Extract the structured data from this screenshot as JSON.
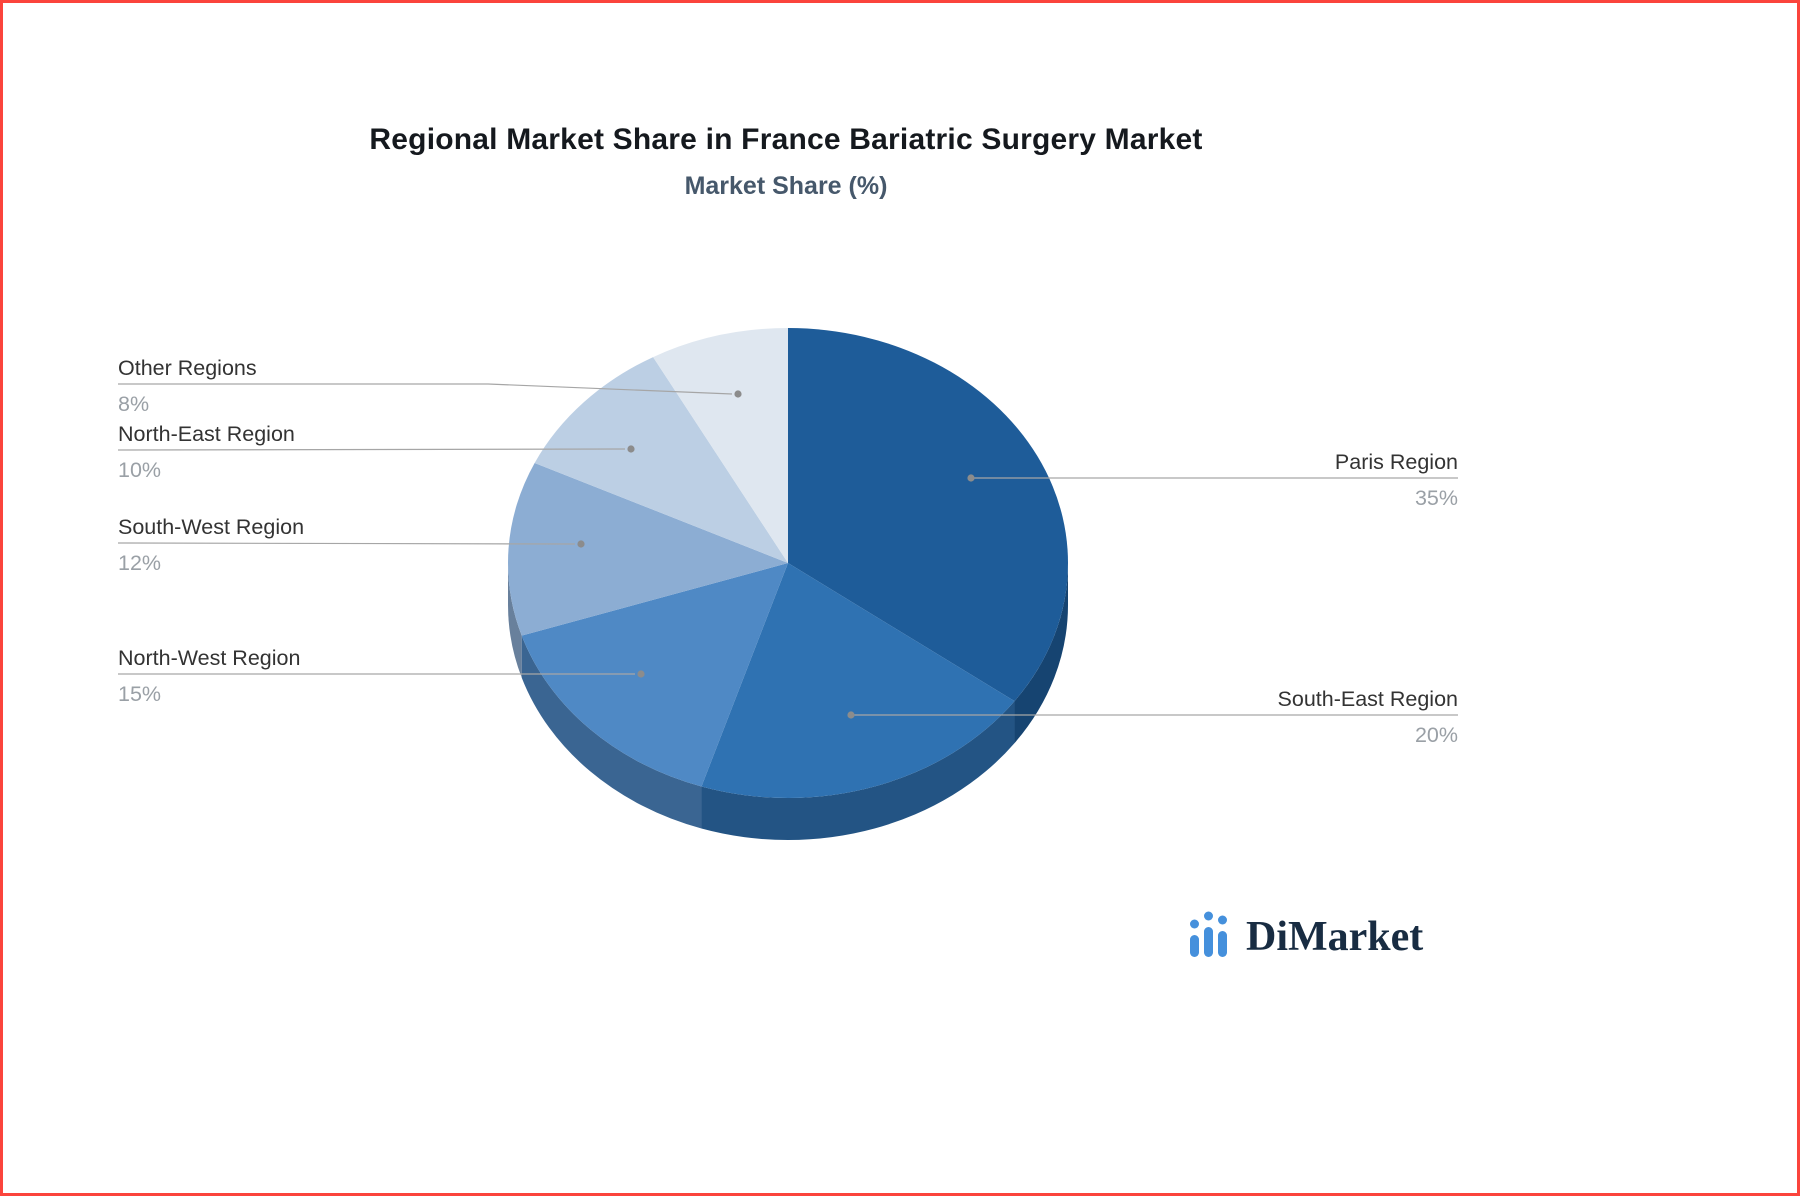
{
  "title": "Regional Market Share in France Bariatric Surgery Market",
  "subtitle": "Market Share (%)",
  "brand": {
    "name": "DiMarket",
    "logo_icon": "bar-chart-icon",
    "logo_color": "#4590dc",
    "text_color": "#182c42"
  },
  "chart_data": {
    "type": "pie",
    "title": "Regional Market Share in France Bariatric Surgery Market",
    "subtitle": "Market Share (%)",
    "unit": "%",
    "effect": "3d",
    "start_angle_deg": 0,
    "direction": "clockwise",
    "legend_position": "callout-labels",
    "slices": [
      {
        "label": "Paris Region",
        "value": 35,
        "display": "35%",
        "color": "#1e5c99"
      },
      {
        "label": "South-East Region",
        "value": 20,
        "display": "20%",
        "color": "#2f72b2"
      },
      {
        "label": "North-West Region",
        "value": 15,
        "display": "15%",
        "color": "#4f89c5"
      },
      {
        "label": "South-West Region",
        "value": 12,
        "display": "12%",
        "color": "#8cadd3"
      },
      {
        "label": "North-East Region",
        "value": 10,
        "display": "10%",
        "color": "#bccfe4"
      },
      {
        "label": "Other Regions",
        "value": 8,
        "display": "8%",
        "color": "#dfe7f0"
      }
    ],
    "label_text_color": "#333333",
    "value_text_color": "#9aa0a6",
    "leader_line_color": "#a6a6a6"
  }
}
